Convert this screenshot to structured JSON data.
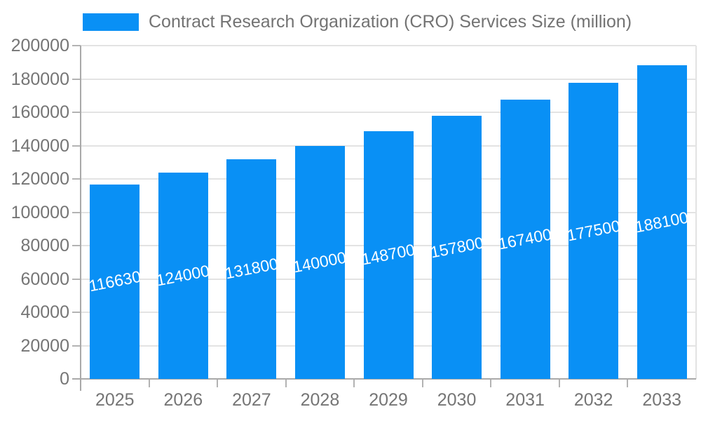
{
  "legend": {
    "label": "Contract Research Organization (CRO) Services Size (million)"
  },
  "chart_data": {
    "type": "bar",
    "title": "Contract Research Organization (CRO) Services Size (million)",
    "categories": [
      "2025",
      "2026",
      "2027",
      "2028",
      "2029",
      "2030",
      "2031",
      "2032",
      "2033"
    ],
    "values": [
      116630,
      124000,
      131800,
      140000,
      148700,
      157800,
      167400,
      177500,
      188100
    ],
    "bar_labels": [
      "116630",
      "124000",
      "131800",
      "140000",
      "148700",
      "157800",
      "167400",
      "177500",
      "188100"
    ],
    "xlabel": "",
    "ylabel": "",
    "ylim": [
      0,
      200000
    ],
    "ytick_step": 20000,
    "ytick_labels": [
      "0",
      "20000",
      "40000",
      "60000",
      "80000",
      "100000",
      "120000",
      "140000",
      "160000",
      "180000",
      "200000"
    ],
    "grid": true,
    "legend_position": "top-left",
    "colors": {
      "bar": "#0990f5",
      "bar_label_text": "#ffffff",
      "grid": "#e3e3e3",
      "axis": "#a9a9a9",
      "tick": "#b3b3b3",
      "tick_text": "#757575",
      "legend_text": "#737373",
      "background": "#ffffff"
    }
  }
}
